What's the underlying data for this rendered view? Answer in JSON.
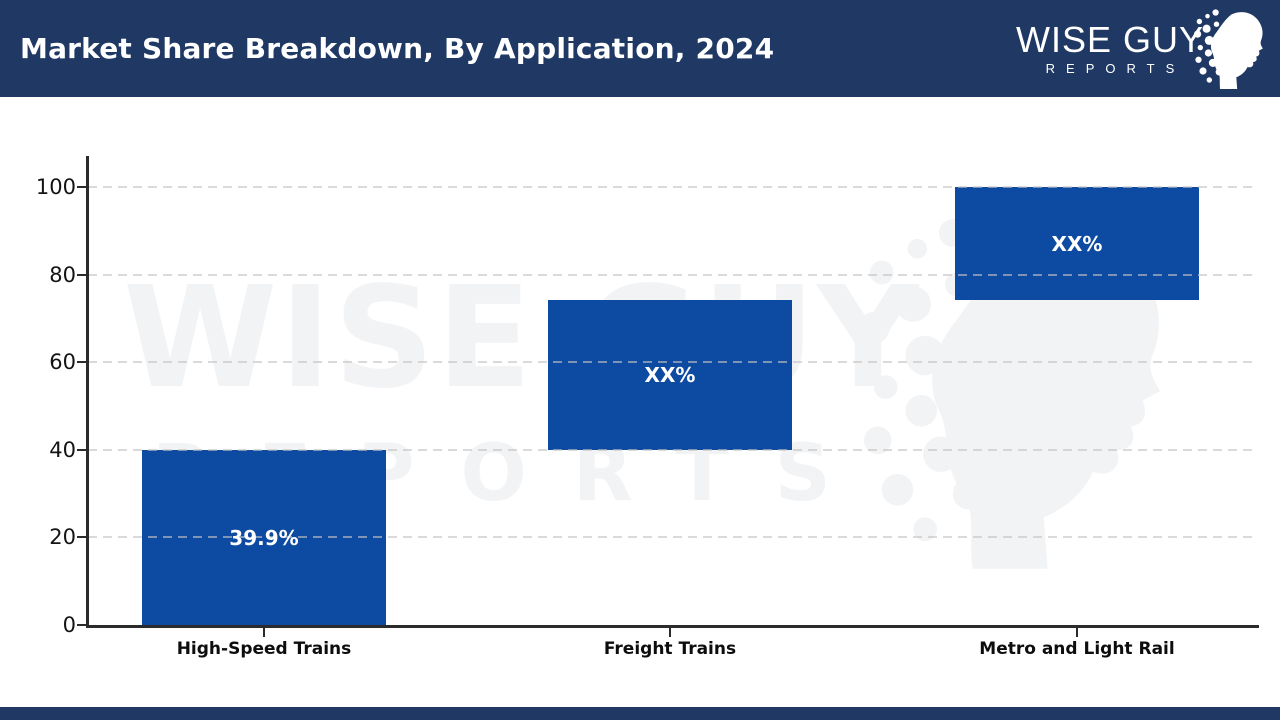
{
  "header": {
    "title": "Market Share Breakdown, By Application, 2024",
    "bg_color": "#1f3864",
    "logo_line1": "WISE GUY",
    "logo_line2": "REPORTS"
  },
  "watermark": {
    "line1": "WISE GUY",
    "line2": "REPORTS"
  },
  "chart_data": {
    "type": "bar",
    "subtype": "waterfall",
    "title": "Market Share Breakdown, By Application, 2024",
    "categories": [
      "High-Speed Trains",
      "Freight Trains",
      "Metro and Light Rail"
    ],
    "series": [
      {
        "name": "Market share (%)",
        "segments": [
          {
            "category": "High-Speed Trains",
            "start": 0,
            "end": 39.9,
            "label": "39.9%"
          },
          {
            "category": "Freight Trains",
            "start": 39.9,
            "end": 74.1,
            "label": "XX%"
          },
          {
            "category": "Metro and Light Rail",
            "start": 74.1,
            "end": 100,
            "label": "XX%"
          }
        ]
      }
    ],
    "yticks": [
      0,
      20,
      40,
      60,
      80,
      100
    ],
    "ylim": [
      0,
      106.6
    ],
    "xlabel": "",
    "ylabel": "",
    "grid": "horizontal-dashed",
    "legend": "none",
    "bar_color": "#0d4aa1",
    "value_label_color": "#ffffff"
  },
  "footer": {
    "bg_color": "#1f3864"
  }
}
